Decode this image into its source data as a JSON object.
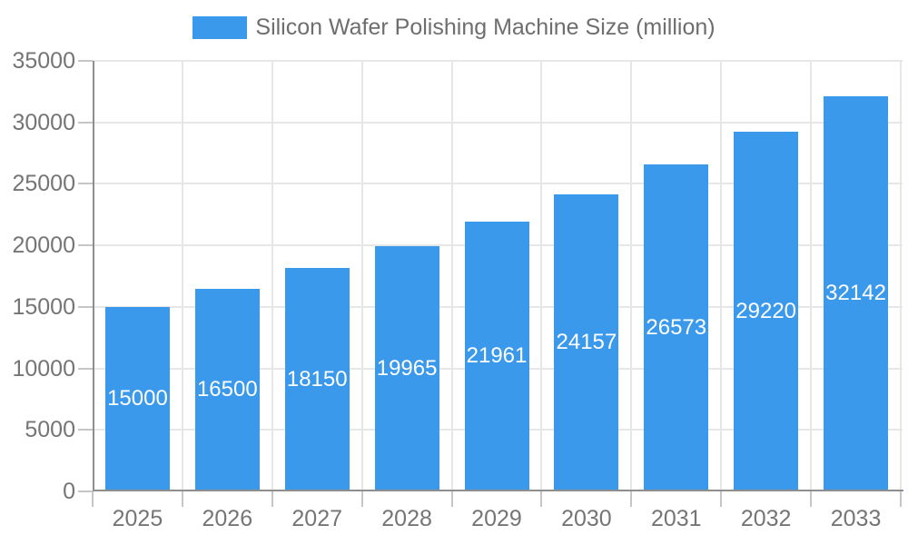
{
  "chart_data": {
    "type": "bar",
    "title": "Silicon Wafer Polishing Machine Size (million)",
    "legend": [
      "Silicon Wafer Polishing Machine Size (million)"
    ],
    "legend_position": "top",
    "categories": [
      "2025",
      "2026",
      "2027",
      "2028",
      "2029",
      "2030",
      "2031",
      "2032",
      "2033"
    ],
    "values": [
      15000,
      16500,
      18150,
      19965,
      21961,
      24157,
      26573,
      29220,
      32142
    ],
    "xlabel": "",
    "ylabel": "",
    "ylim": [
      0,
      35000
    ],
    "y_ticks": [
      0,
      5000,
      10000,
      15000,
      20000,
      25000,
      30000,
      35000
    ],
    "grid": true,
    "bar_value_labels_inside": true,
    "colors": {
      "bar": "#3B99EC",
      "bar_label_text": "#FFFFFF",
      "axis_line": "#8E8E8E",
      "grid_line": "#E7E7E7",
      "tick_line": "#C6C6C6",
      "axis_text": "#757575",
      "legend_text": "#6E6E6E",
      "background": "#FFFFFF"
    }
  }
}
